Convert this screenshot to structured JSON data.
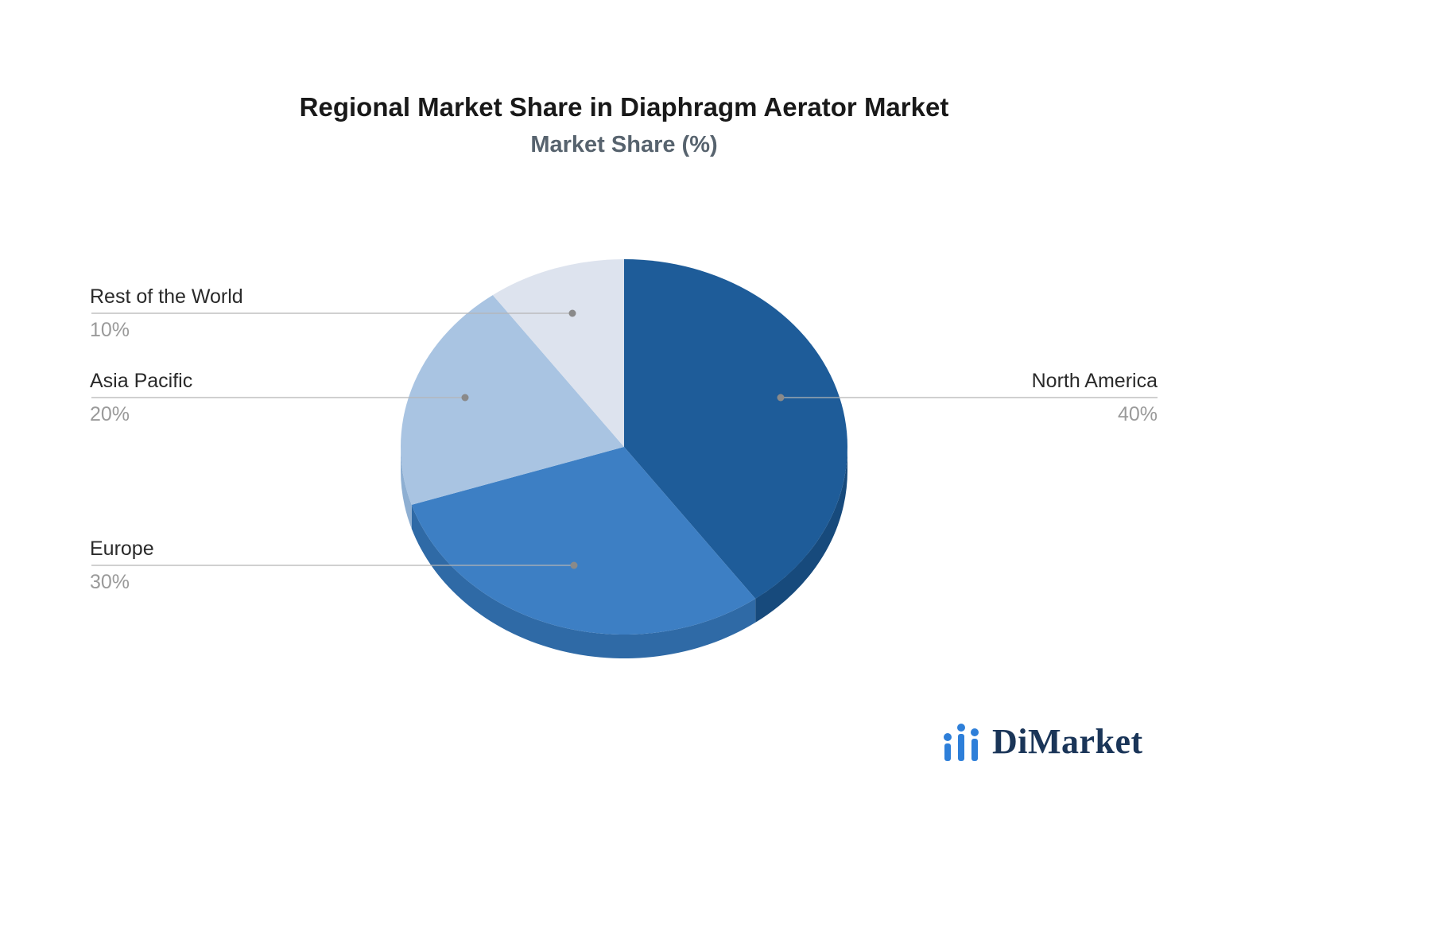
{
  "title": "Regional Market Share in Diaphragm Aerator Market",
  "subtitle": "Market Share (%)",
  "chart_data": {
    "type": "pie",
    "title": "Regional Market Share in Diaphragm Aerator Market",
    "subtitle": "Market Share (%)",
    "unit": "%",
    "effect": "3d",
    "direction": "clockwise",
    "start_angle_deg": 0,
    "legend_position": "none",
    "labels": [
      "North America",
      "Europe",
      "Asia Pacific",
      "Rest of the World"
    ],
    "values": [
      40,
      30,
      20,
      10
    ],
    "display_values": [
      "40%",
      "30%",
      "20%",
      "10%"
    ],
    "colors": [
      "#1e5c99",
      "#3d7fc4",
      "#a9c4e2",
      "#dde3ee"
    ],
    "side_colors": [
      "#174a7c",
      "#2f6aa6",
      "#8eafd2",
      "#c9d4e4"
    ]
  },
  "leader_line_color": "#b5b5b5",
  "leader_dot_color": "#8a8a8a",
  "brand": {
    "text": "DiMarket",
    "icon": "bar-chart-icon",
    "icon_color": "#2e7fd9",
    "text_color": "#1a3558"
  }
}
